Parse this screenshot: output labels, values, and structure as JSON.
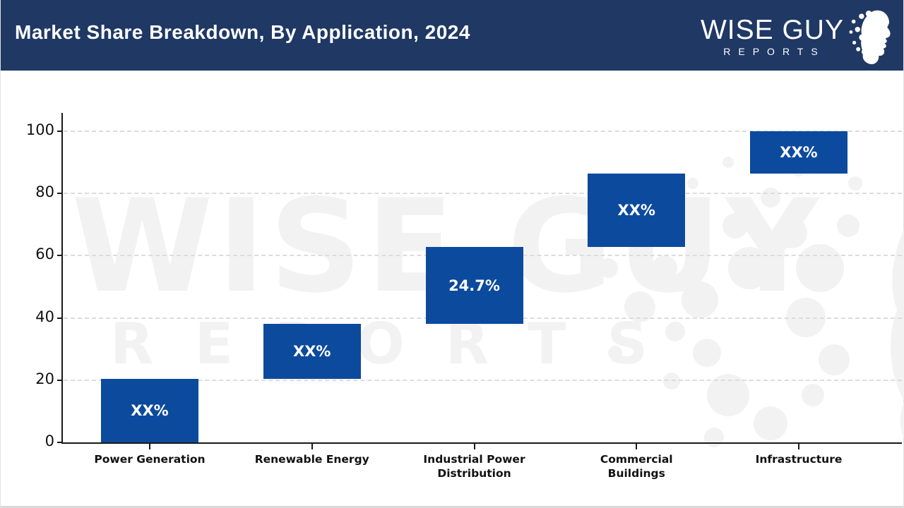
{
  "header": {
    "title": "Market Share Breakdown, By Application, 2024",
    "logo": {
      "line1": "WISE GUY",
      "line2": "REPORTS"
    }
  },
  "watermark": {
    "line1": "WISE GUY",
    "line2": "REPORTS"
  },
  "colors": {
    "header_bg": "#1f3864",
    "bar": "#0c4a9e",
    "grid": "#dcdcdc",
    "axis": "#1a1a1a",
    "watermark": "#f2f2f2"
  },
  "chart_data": {
    "type": "bar",
    "subtype": "waterfall",
    "title": "Market Share Breakdown, By Application, 2024",
    "xlabel": "",
    "ylabel": "",
    "categories": [
      "Power Generation",
      "Renewable Energy",
      "Industrial Power Distribution",
      "Commercial Buildings",
      "Infrastructure"
    ],
    "segments": [
      {
        "category": "Power Generation",
        "start": 0,
        "end": 20.4,
        "value": 20.4,
        "label": "XX%"
      },
      {
        "category": "Renewable Energy",
        "start": 20.4,
        "end": 38.1,
        "value": 17.7,
        "label": "XX%"
      },
      {
        "category": "Industrial Power Distribution",
        "start": 38.1,
        "end": 62.8,
        "value": 24.7,
        "label": "24.7%"
      },
      {
        "category": "Commercial Buildings",
        "start": 62.8,
        "end": 86.4,
        "value": 23.6,
        "label": "XX%"
      },
      {
        "category": "Infrastructure",
        "start": 86.4,
        "end": 100,
        "value": 13.6,
        "label": "XX%"
      }
    ],
    "yticks": [
      0,
      20,
      40,
      60,
      80,
      100
    ],
    "ylim": [
      0,
      106
    ],
    "grid": "horizontal-dashed",
    "legend": "none"
  }
}
